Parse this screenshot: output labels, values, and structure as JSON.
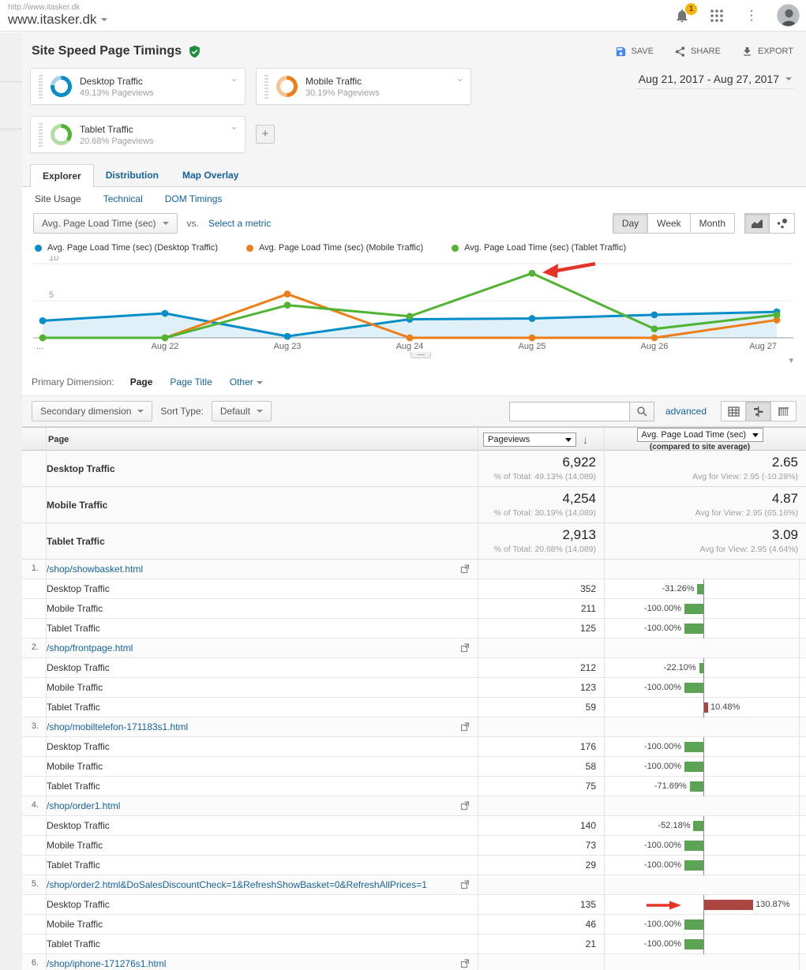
{
  "topbar": {
    "site_url": "http://www.itasker.dk",
    "account": "www.itasker.dk",
    "notifications": "1"
  },
  "report": {
    "title": "Site Speed Page Timings",
    "save": "SAVE",
    "share": "SHARE",
    "export": "EXPORT",
    "date_range": "Aug 21, 2017 - Aug 27, 2017",
    "add_segment": "+"
  },
  "segments": [
    {
      "name": "Desktop Traffic",
      "sub": "49.13% Pageviews",
      "pct": 49.13,
      "color": "#058dc7",
      "tint": "#a6cfe8"
    },
    {
      "name": "Mobile Traffic",
      "sub": "30.19% Pageviews",
      "pct": 30.19,
      "color": "#ed7e17",
      "tint": "#f6c491"
    },
    {
      "name": "Tablet Traffic",
      "sub": "20.68% Pageviews",
      "pct": 20.68,
      "color": "#50b432",
      "tint": "#b4dda4"
    }
  ],
  "tabs": {
    "items": [
      "Explorer",
      "Distribution",
      "Map Overlay"
    ],
    "active": "Explorer"
  },
  "subtabs": {
    "items": [
      "Site Usage",
      "Technical",
      "DOM Timings"
    ],
    "active": "Site Usage"
  },
  "controls": {
    "metric_dropdown": "Avg. Page Load Time (sec)",
    "vs": "vs.",
    "select_metric": "Select a metric",
    "granularity": [
      "Day",
      "Week",
      "Month"
    ],
    "granularity_active": "Day"
  },
  "chart_data": {
    "type": "line",
    "x": [
      "Aug 21",
      "Aug 22",
      "Aug 23",
      "Aug 24",
      "Aug 25",
      "Aug 26",
      "Aug 27"
    ],
    "x_tick_labels": [
      "...",
      "Aug 22",
      "Aug 23",
      "Aug 24",
      "Aug 25",
      "Aug 26",
      "Aug 27"
    ],
    "ylim": [
      0,
      10
    ],
    "yticks": [
      5,
      10
    ],
    "grid": true,
    "legend_position": "top",
    "series": [
      {
        "name": "Avg. Page Load Time (sec) (Desktop Traffic)",
        "color": "#058dc7",
        "area": true,
        "values": [
          2.3,
          3.3,
          0.2,
          2.5,
          2.6,
          3.1,
          3.5
        ]
      },
      {
        "name": "Avg. Page Load Time (sec) (Mobile Traffic)",
        "color": "#ed7e17",
        "area": false,
        "values": [
          0,
          0,
          5.9,
          0,
          0,
          0,
          2.4
        ]
      },
      {
        "name": "Avg. Page Load Time (sec) (Tablet Traffic)",
        "color": "#50b432",
        "area": false,
        "values": [
          0,
          0,
          4.4,
          2.9,
          8.7,
          1.2,
          3.1
        ]
      }
    ],
    "annotation": {
      "type": "arrow",
      "target": "Tablet Traffic peak on Aug 25",
      "color": "#e63327"
    }
  },
  "dimension_bar": {
    "label": "Primary Dimension:",
    "options": [
      "Page",
      "Page Title",
      "Other"
    ],
    "active": "Page"
  },
  "toolbar": {
    "secondary_dimension": "Secondary dimension",
    "sort_type_label": "Sort Type:",
    "sort_type_value": "Default",
    "search_placeholder": "",
    "advanced": "advanced"
  },
  "table": {
    "headers": {
      "page": "Page",
      "pageviews": "Pageviews",
      "metric": "Avg. Page Load Time (sec)",
      "metric_sub": "(compared to site average)"
    },
    "bar_colors": {
      "negative": "#5aa454",
      "positive": "#aa4540"
    },
    "summary": [
      {
        "label": "Desktop Traffic",
        "pageviews": "6,922",
        "pageviews_sub": "% of Total: 49.13% (14,089)",
        "metric": "2.65",
        "metric_sub": "Avg for View: 2.95 (-10.28%)"
      },
      {
        "label": "Mobile Traffic",
        "pageviews": "4,254",
        "pageviews_sub": "% of Total: 30.19% (14,089)",
        "metric": "4.87",
        "metric_sub": "Avg for View: 2.95 (65.16%)"
      },
      {
        "label": "Tablet Traffic",
        "pageviews": "2,913",
        "pageviews_sub": "% of Total: 20.68% (14,089)",
        "metric": "3.09",
        "metric_sub": "Avg for View: 2.95 (4.64%)"
      }
    ],
    "groups": [
      {
        "index": "1.",
        "page": "/shop/showbasket.html",
        "rows": [
          {
            "label": "Desktop Traffic",
            "pageviews": "352",
            "change": "-31.26%",
            "value": -31.26
          },
          {
            "label": "Mobile Traffic",
            "pageviews": "211",
            "change": "-100.00%",
            "value": -100
          },
          {
            "label": "Tablet Traffic",
            "pageviews": "125",
            "change": "-100.00%",
            "value": -100
          }
        ]
      },
      {
        "index": "2.",
        "page": "/shop/frontpage.html",
        "rows": [
          {
            "label": "Desktop Traffic",
            "pageviews": "212",
            "change": "-22.10%",
            "value": -22.1
          },
          {
            "label": "Mobile Traffic",
            "pageviews": "123",
            "change": "-100.00%",
            "value": -100
          },
          {
            "label": "Tablet Traffic",
            "pageviews": "59",
            "change": "10.48%",
            "value": 10.48
          }
        ]
      },
      {
        "index": "3.",
        "page": "/shop/mobiltelefon-171183s1.html",
        "rows": [
          {
            "label": "Desktop Traffic",
            "pageviews": "176",
            "change": "-100.00%",
            "value": -100
          },
          {
            "label": "Mobile Traffic",
            "pageviews": "58",
            "change": "-100.00%",
            "value": -100
          },
          {
            "label": "Tablet Traffic",
            "pageviews": "75",
            "change": "-71.69%",
            "value": -71.69
          }
        ]
      },
      {
        "index": "4.",
        "page": "/shop/order1.html",
        "rows": [
          {
            "label": "Desktop Traffic",
            "pageviews": "140",
            "change": "-52.18%",
            "value": -52.18
          },
          {
            "label": "Mobile Traffic",
            "pageviews": "73",
            "change": "-100.00%",
            "value": -100
          },
          {
            "label": "Tablet Traffic",
            "pageviews": "29",
            "change": "-100.00%",
            "value": -100
          }
        ]
      },
      {
        "index": "5.",
        "page": "/shop/order2.html&DoSalesDiscountCheck=1&RefreshShowBasket=0&RefreshAllPrices=1",
        "rows": [
          {
            "label": "Desktop Traffic",
            "pageviews": "135",
            "change": "130.87%",
            "value": 130.87,
            "annotated": true
          },
          {
            "label": "Mobile Traffic",
            "pageviews": "46",
            "change": "-100.00%",
            "value": -100
          },
          {
            "label": "Tablet Traffic",
            "pageviews": "21",
            "change": "-100.00%",
            "value": -100
          }
        ]
      },
      {
        "index": "6.",
        "page": "/shop/iphone-171276s1.html",
        "rows": []
      }
    ]
  }
}
